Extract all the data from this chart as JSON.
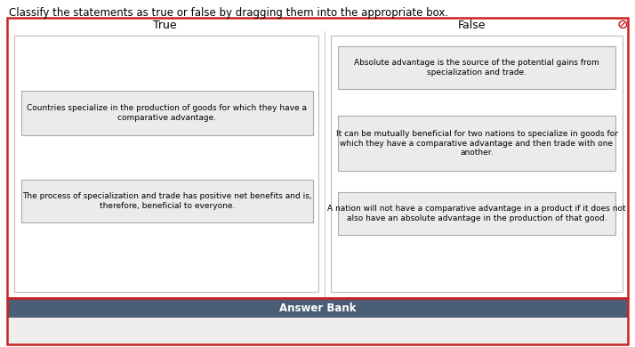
{
  "title": "Classify the statements as true or false by dragging them into the appropriate box.",
  "title_fontsize": 8.5,
  "true_label": "True",
  "false_label": "False",
  "answer_bank_label": "Answer Bank",
  "true_items": [
    "Countries specialize in the production of goods for which they have a\ncomparative advantage.",
    "The process of specialization and trade has positive net benefits and is,\ntherefore, beneficial to everyone."
  ],
  "false_items": [
    "Absolute advantage is the source of the potential gains from\nspecialization and trade.",
    "It can be mutually beneficial for two nations to specialize in goods for\nwhich they have a comparative advantage and then trade with one\nanother.",
    "A nation will not have a comparative advantage in a product if it does not\nalso have an absolute advantage in the production of that good."
  ],
  "bg_color": "#ffffff",
  "outer_border_color": "#cc2222",
  "inner_box_bg": "#ffffff",
  "inner_box_border": "#bbbbbb",
  "answer_bank_header_bg": "#4a5f75",
  "answer_bank_header_fg": "#ffffff",
  "answer_bank_body_bg": "#eeeeee",
  "card_bg": "#ebebeb",
  "card_border": "#aaaaaa",
  "text_color": "#000000",
  "header_text_color": "#000000",
  "font_size": 6.5,
  "header_font_size": 9
}
